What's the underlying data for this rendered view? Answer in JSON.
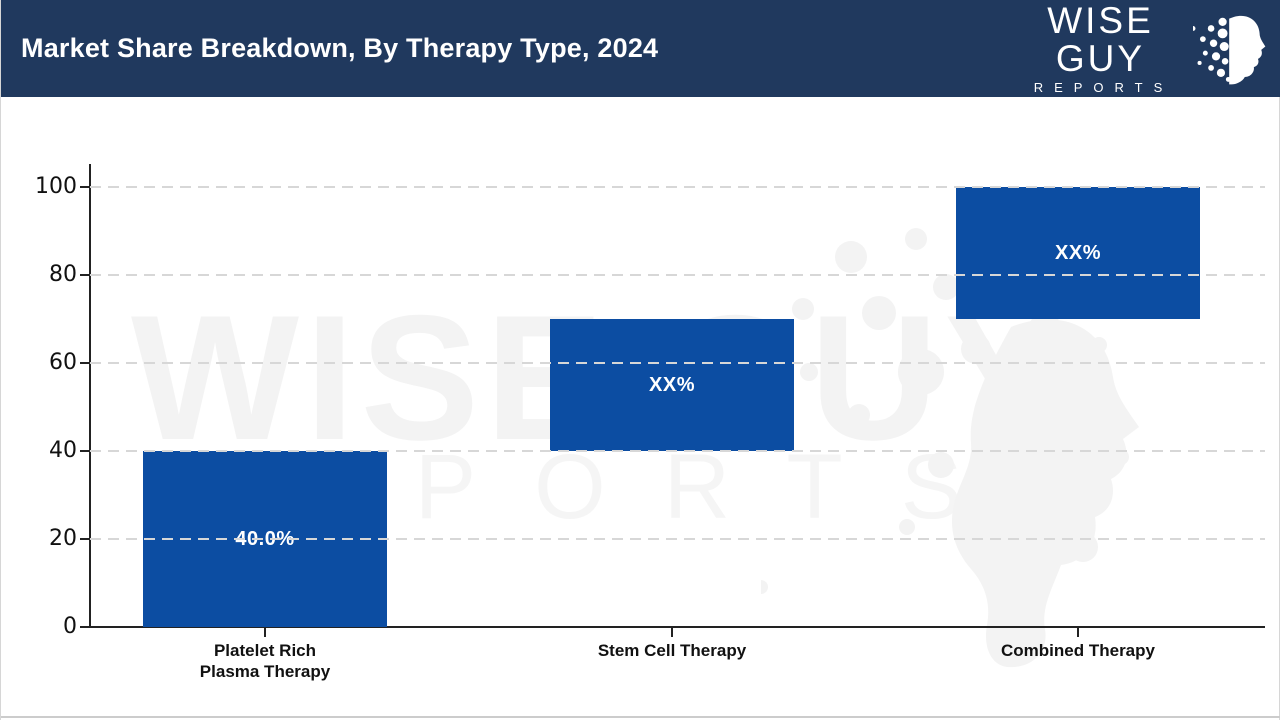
{
  "header": {
    "title": "Market Share Breakdown, By Therapy Type, 2024",
    "logo": {
      "line1": "WISE GUY",
      "line2": "REPORTS"
    }
  },
  "watermark": {
    "line1": "WISE GUY",
    "line2": "REPORTS"
  },
  "colors": {
    "header_background": "#20395E",
    "bar_blue": "#0C4DA2",
    "axis": "#222222",
    "gridline": "#D7D7D7",
    "value_label": "#FFFFFF",
    "tick_text": "#111111",
    "watermark_gray": "#F3F3F3"
  },
  "chart_data": {
    "type": "bar",
    "subtype": "stacked-range (each bar begins where the previous one ends)",
    "title": "Market Share Breakdown, By Therapy Type, 2024",
    "xlabel": "",
    "ylabel": "",
    "ylim": [
      0,
      100
    ],
    "yticks": [
      0,
      20,
      40,
      60,
      80,
      100
    ],
    "grid": "horizontal-dashed",
    "legend": false,
    "bar_color": "#0C4DA2",
    "value_label_color": "#FFFFFF",
    "bars": [
      {
        "category": "Platelet Rich Plasma Therapy",
        "category_lines": [
          "Platelet Rich",
          "Plasma Therapy"
        ],
        "from": 0,
        "to": 40,
        "value_label": "40.0%"
      },
      {
        "category": "Stem Cell Therapy",
        "category_lines": [
          "Stem Cell Therapy"
        ],
        "from": 40,
        "to": 70,
        "value_label": "XX%"
      },
      {
        "category": "Combined Therapy",
        "category_lines": [
          "Combined Therapy"
        ],
        "from": 70,
        "to": 100,
        "value_label": "XX%"
      }
    ]
  }
}
